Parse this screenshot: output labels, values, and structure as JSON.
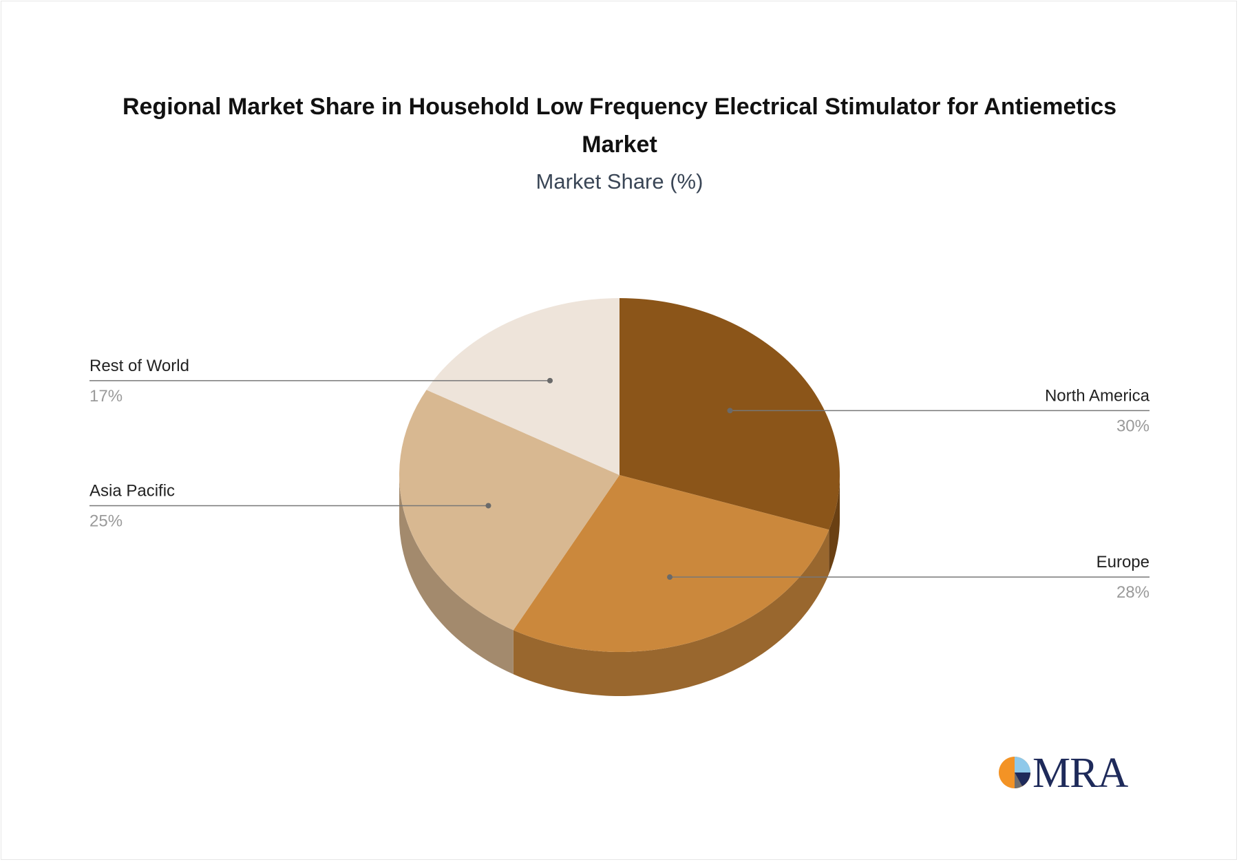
{
  "chart_data": {
    "type": "pie",
    "title": "Regional Market Share in Household Low Frequency Electrical Stimulator for Antiemetics Market",
    "subtitle": "Market Share (%)",
    "slices": [
      {
        "label": "North America",
        "value": 30,
        "display": "30%",
        "color": "#8B5519",
        "side_color": "#6a4013"
      },
      {
        "label": "Europe",
        "value": 28,
        "display": "28%",
        "color": "#CB883C",
        "side_color": "#99672e"
      },
      {
        "label": "Asia Pacific",
        "value": 25,
        "display": "25%",
        "color": "#D8B891",
        "side_color": "#a38a6d"
      },
      {
        "label": "Rest of World",
        "value": 17,
        "display": "17%",
        "color": "#EEE4DA",
        "side_color": "#bdb3a9"
      }
    ]
  },
  "logo": {
    "text": "MRA",
    "colors": [
      "#F39325",
      "#1E2A5A",
      "#8FC9EA",
      "#6d6e71"
    ]
  }
}
